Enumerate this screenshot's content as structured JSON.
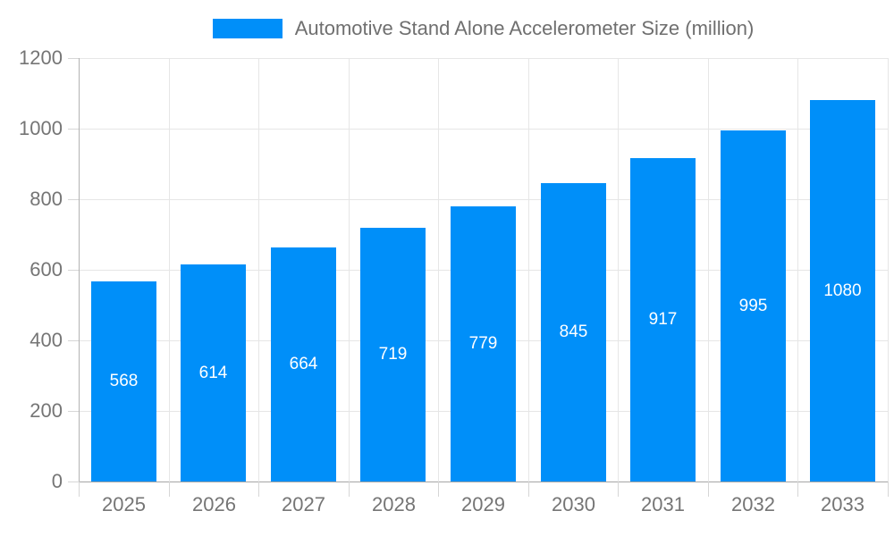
{
  "legend": {
    "label": "Automotive Stand Alone Accelerometer Size (million)"
  },
  "chart_data": {
    "type": "bar",
    "title": "Automotive Stand Alone Accelerometer Size (million)",
    "categories": [
      "2025",
      "2026",
      "2027",
      "2028",
      "2029",
      "2030",
      "2031",
      "2032",
      "2033"
    ],
    "values": [
      568,
      614,
      664,
      719,
      779,
      845,
      917,
      995,
      1080
    ],
    "series_name": "Automotive Stand Alone Accelerometer Size (million)",
    "xlabel": "",
    "ylabel": "",
    "ylim": [
      0,
      1200
    ],
    "ytick_step": 200,
    "yticks": [
      "0",
      "200",
      "400",
      "600",
      "800",
      "1000",
      "1200"
    ],
    "grid": true,
    "legend_position": "top",
    "value_labels": "centered-in-bar",
    "colors": {
      "bar": "#008FF9",
      "value_label": "#FFFFFF",
      "axis_text": "#757575",
      "title_text": "#6F6F6F",
      "gridline": "#E6E6E6",
      "axis_line": "#B3B3B3",
      "baseline": "#A6A6A6",
      "tick_mark": "#D6D6D6"
    }
  }
}
